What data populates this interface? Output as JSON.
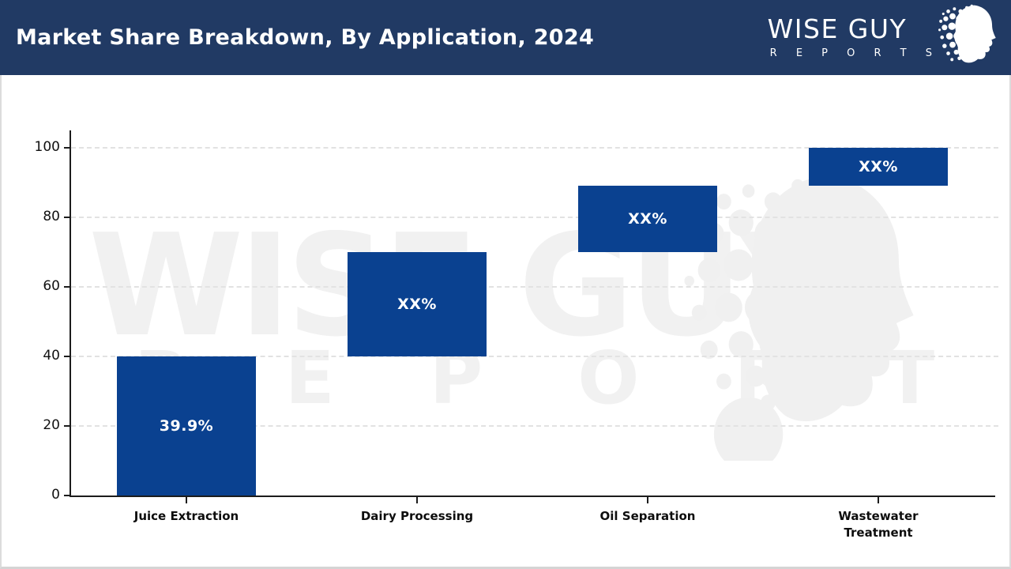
{
  "header": {
    "title": "Market Share Breakdown, By Application, 2024",
    "logo": {
      "name": "WISE GUY",
      "sub": "R E P O R T S"
    }
  },
  "watermark": {
    "big": "WISE GUY",
    "sub": "R E P O R T S"
  },
  "chart_data": {
    "type": "bar",
    "variant": "waterfall",
    "title": "Market Share Breakdown, By Application, 2024",
    "categories": [
      "Juice Extraction",
      "Dairy Processing",
      "Oil Separation",
      "Wastewater Treatment"
    ],
    "series": [
      {
        "name": "Market Share",
        "segments": [
          {
            "category": "Juice Extraction",
            "from": 0,
            "to": 39.9,
            "label": "39.9%"
          },
          {
            "category": "Dairy Processing",
            "from": 39.9,
            "to": 70,
            "label": "XX%"
          },
          {
            "category": "Oil Separation",
            "from": 70,
            "to": 89,
            "label": "XX%"
          },
          {
            "category": "Wastewater Treatment",
            "from": 89,
            "to": 100,
            "label": "XX%"
          }
        ]
      }
    ],
    "xlabel": "",
    "ylabel": "",
    "yticks": [
      0,
      20,
      40,
      60,
      80,
      100
    ],
    "ylim": [
      0,
      105
    ],
    "grid": {
      "horizontal": true,
      "style": "dashed"
    },
    "legend": "none",
    "colors": {
      "bar": "#0a4190",
      "bar_label": "#ffffff",
      "grid": "#e2e2e2",
      "axis": "#1c1c1c",
      "tick_label": "#111111"
    }
  },
  "colors": {
    "header_bg": "#213a64",
    "header_text": "#ffffff",
    "figure_bg": "#ffffff",
    "watermark": "#f1f1f1",
    "edge_border": "#d9d9d9"
  }
}
